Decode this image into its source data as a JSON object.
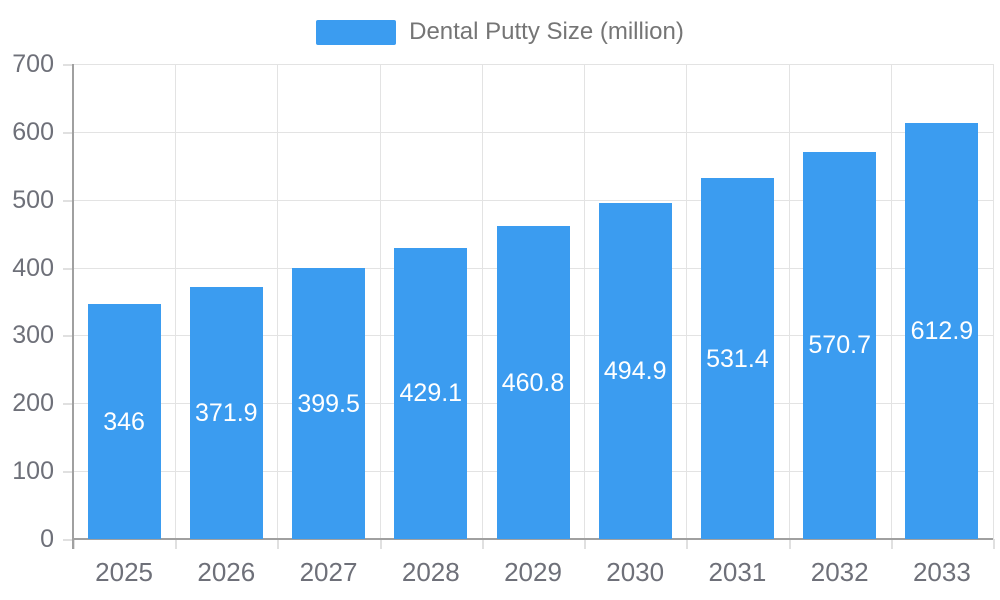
{
  "legend": {
    "label": "Dental Putty Size (million)"
  },
  "chart_data": {
    "type": "bar",
    "title": "Dental Putty Size (million)",
    "categories": [
      "2025",
      "2026",
      "2027",
      "2028",
      "2029",
      "2030",
      "2031",
      "2032",
      "2033"
    ],
    "values": [
      346,
      371.9,
      399.5,
      429.1,
      460.8,
      494.9,
      531.4,
      570.7,
      612.9
    ],
    "value_labels": [
      "346",
      "371.9",
      "399.5",
      "429.1",
      "460.8",
      "494.9",
      "531.4",
      "570.7",
      "612.9"
    ],
    "xlabel": "",
    "ylabel": "",
    "ylim": [
      0,
      700
    ],
    "ytick_step": 100,
    "grid": true,
    "legend_position": "top",
    "value_labels_inside_bars": true,
    "colors": {
      "bar": "#3b9cf0",
      "bar_label": "#ffffff",
      "grid": "#e3e3e3",
      "tick": "#e0e0e0",
      "axis_line": "#a0a0a0",
      "axis_text": "#6e7079",
      "legend_text": "#757575",
      "background": "#ffffff"
    }
  }
}
